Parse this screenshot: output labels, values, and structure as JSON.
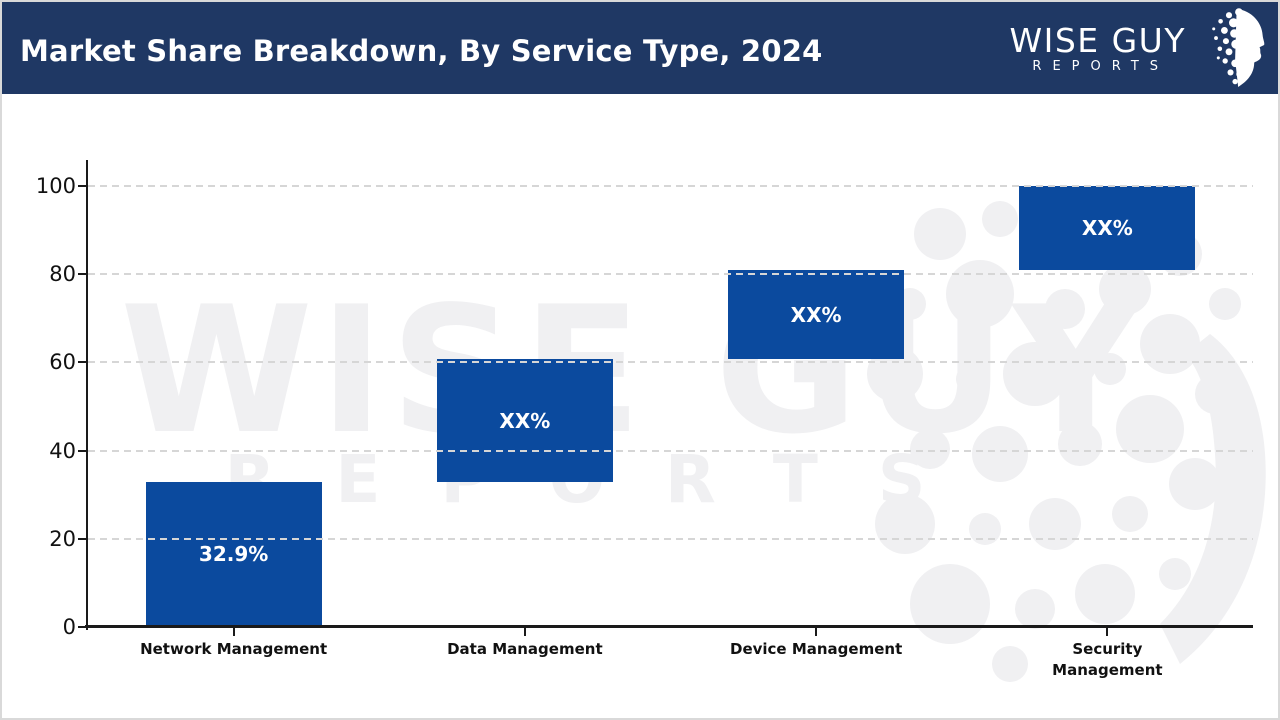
{
  "header": {
    "title": "Market Share Breakdown, By Service Type, 2024",
    "logo": {
      "line1": "WISE GUY",
      "line2": "REPORTS"
    }
  },
  "watermark": {
    "line1": "WISE GUY",
    "line2": "REPORTS"
  },
  "chart_data": {
    "type": "bar",
    "subtype": "floating-waterfall",
    "title": "Market Share Breakdown, By Service Type, 2024",
    "categories": [
      "Network Management",
      "Data Management",
      "Device Management",
      "Security Management"
    ],
    "tick_labels": [
      "Network Management",
      "Data Management",
      "Device Management",
      "Security\nManagement"
    ],
    "segments": [
      {
        "category": "Network Management",
        "start": 0,
        "end": 32.9,
        "label": "32.9%"
      },
      {
        "category": "Data Management",
        "start": 32.9,
        "end": 60.7,
        "label": "XX%"
      },
      {
        "category": "Device Management",
        "start": 60.7,
        "end": 80.9,
        "label": "XX%"
      },
      {
        "category": "Security Management",
        "start": 80.9,
        "end": 100,
        "label": "XX%"
      }
    ],
    "ylim": [
      0,
      100
    ],
    "yticks": [
      0,
      20,
      40,
      60,
      80,
      100
    ],
    "xlabel": "",
    "ylabel": "",
    "legend": null,
    "grid": "horizontal dashed, drawn over bars",
    "bar_color": "#0b4a9e",
    "value_label_color": "#ffffff"
  },
  "colors": {
    "header_bg": "#1f3864",
    "bar": "#0b4a9e",
    "gridline": "#d6d6d6",
    "axis": "#1a1a1a",
    "watermark": "#f0f0f2",
    "frame_border": "#d9d9d9",
    "title_text": "#ffffff"
  }
}
